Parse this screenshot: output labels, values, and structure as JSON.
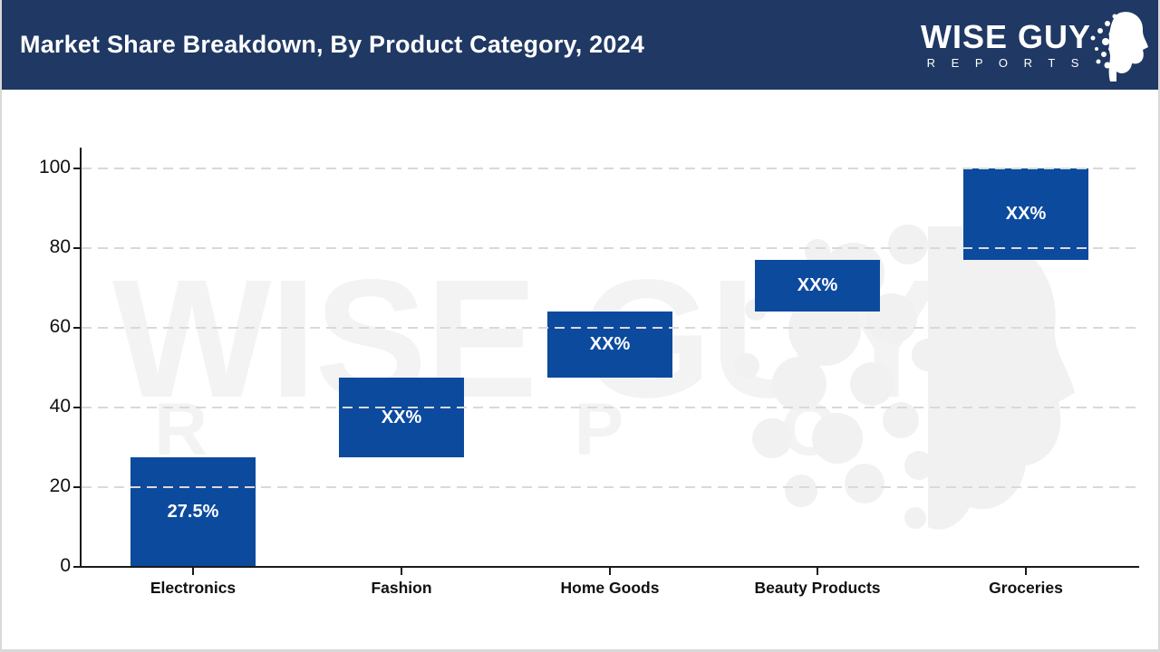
{
  "header": {
    "title": "Market Share Breakdown, By Product Category, 2024",
    "logo": {
      "primary": "WISE GUY",
      "secondary": "R E P O R T S"
    }
  },
  "watermark": {
    "primary": "WISE GUY",
    "secondary": "R E P O R T S"
  },
  "chart_data": {
    "type": "waterfall",
    "title": "Market Share Breakdown, By Product Category, 2024",
    "categories": [
      "Electronics",
      "Fashion",
      "Home Goods",
      "Beauty Products",
      "Groceries"
    ],
    "segments": [
      {
        "category": "Electronics",
        "start": 0,
        "end": 27.5,
        "label": "27.5%"
      },
      {
        "category": "Fashion",
        "start": 27.5,
        "end": 47.5,
        "label": "XX%"
      },
      {
        "category": "Home Goods",
        "start": 47.5,
        "end": 64,
        "label": "XX%"
      },
      {
        "category": "Beauty Products",
        "start": 64,
        "end": 77,
        "label": "XX%"
      },
      {
        "category": "Groceries",
        "start": 77,
        "end": 100,
        "label": "XX%"
      }
    ],
    "ylim": [
      0,
      100
    ],
    "yticks": [
      0,
      20,
      40,
      60,
      80,
      100
    ],
    "grid": "horizontal-dashed",
    "legend": "none",
    "bar_color": "#0c4a9e",
    "bar_label_color": "#ffffff",
    "axis_color": "#1a1a1a",
    "grid_color": "#d9d9d9",
    "header_color": "#203864"
  }
}
